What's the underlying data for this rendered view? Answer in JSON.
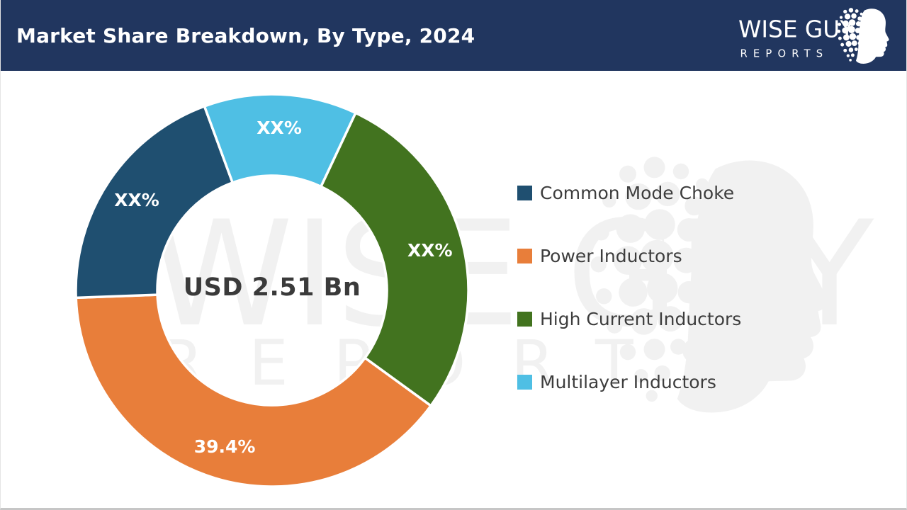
{
  "page": {
    "background_color": "#ffffff",
    "bottom_border_color": "#c6c6c6"
  },
  "header": {
    "title": "Market Share Breakdown, By Type, 2024",
    "bg_color": "#21365f",
    "logo": {
      "line1": "WISE GUY",
      "line2": "REPORTS"
    }
  },
  "watermark": {
    "line1": "WISE GUY",
    "line2": "REPORTS"
  },
  "chart_data": {
    "type": "donut",
    "title": "Market Share Breakdown, By Type, 2024",
    "center_label": "USD 2.51 Bn",
    "start_angle_deg": 126,
    "legend_position": "right",
    "label_text_color": "#ffffff",
    "segments": [
      {
        "name": "Power Inductors",
        "value": 39.4,
        "display_label": "39.4%",
        "color": "#e87e3a"
      },
      {
        "name": "Common Mode Choke",
        "value": 20.0,
        "display_label": "XX%",
        "color": "#1f4f70"
      },
      {
        "name": "Multilayer Inductors",
        "value": 12.6,
        "display_label": "XX%",
        "color": "#4fbfe4"
      },
      {
        "name": "High Current Inductors",
        "value": 28.0,
        "display_label": "XX%",
        "color": "#42731f"
      }
    ],
    "legend_order": [
      1,
      0,
      3,
      2
    ]
  }
}
